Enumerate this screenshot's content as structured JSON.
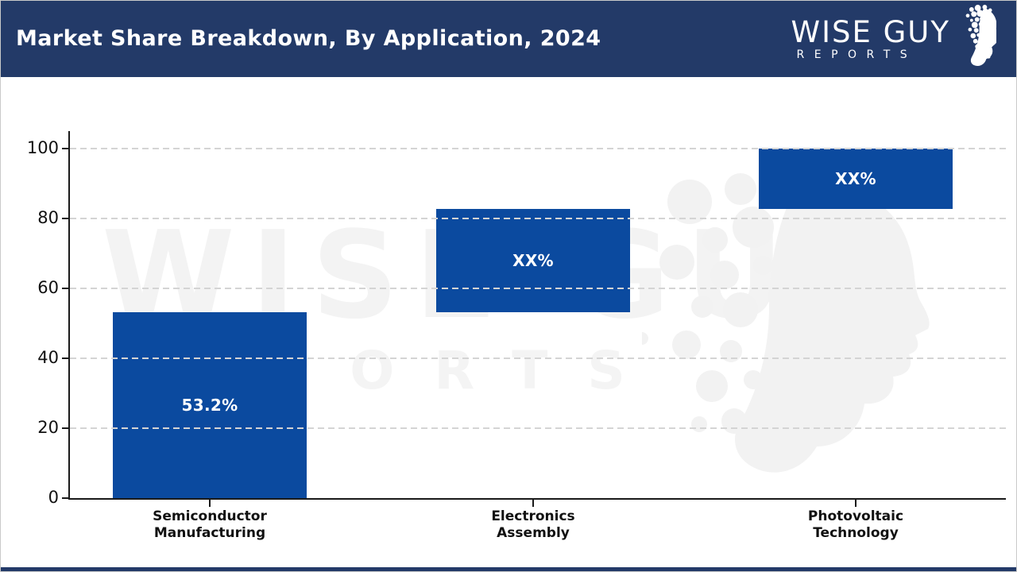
{
  "header": {
    "title": "Market Share Breakdown, By Application, 2024",
    "logo": {
      "brand": "WISE GUY",
      "sub": "REPORTS"
    }
  },
  "watermark": {
    "line1": "WISE GUY",
    "line2": "REPORTS"
  },
  "colors": {
    "header_bg": "#233a68",
    "bar": "#0b4a9f",
    "grid": "#d4d4d4",
    "axis": "#1a1a1a",
    "watermark": "#f2f2f2",
    "footer_stripe": "#233a68",
    "bar_label": "#ffffff"
  },
  "chart_data": {
    "type": "bar",
    "subtype": "waterfall",
    "title": "Market Share Breakdown, By Application, 2024",
    "categories": [
      "Semiconductor Manufacturing",
      "Electronics Assembly",
      "Photovoltaic Technology"
    ],
    "category_lines": [
      [
        "Semiconductor",
        "Manufacturing"
      ],
      [
        "Electronics",
        "Assembly"
      ],
      [
        "Photovoltaic",
        "Technology"
      ]
    ],
    "segments": [
      {
        "category": "Semiconductor Manufacturing",
        "start": 0,
        "end": 53.2,
        "label": "53.2%"
      },
      {
        "category": "Electronics Assembly",
        "start": 53.2,
        "end": 82.8,
        "label": "XX%"
      },
      {
        "category": "Photovoltaic Technology",
        "start": 82.8,
        "end": 100,
        "label": "XX%"
      }
    ],
    "xlabel": "",
    "ylabel": "",
    "ylim": [
      0,
      100
    ],
    "yticks": [
      0,
      20,
      40,
      60,
      80,
      100
    ],
    "grid": "horizontal-dashed",
    "legend": "none"
  }
}
